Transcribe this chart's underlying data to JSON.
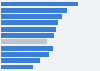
{
  "values": [
    43,
    37,
    34,
    32,
    31,
    30,
    26,
    29,
    27,
    22,
    18
  ],
  "bar_colors": [
    "#3a7fd5",
    "#3a7fd5",
    "#3a7fd5",
    "#3a7fd5",
    "#3a7fd5",
    "#3a7fd5",
    "#c0c4cc",
    "#3a7fd5",
    "#3a7fd5",
    "#3a7fd5",
    "#3a7fd5"
  ],
  "background_color": "#f0f2f5",
  "bar_height": 0.75,
  "xlim": [
    0,
    55
  ]
}
